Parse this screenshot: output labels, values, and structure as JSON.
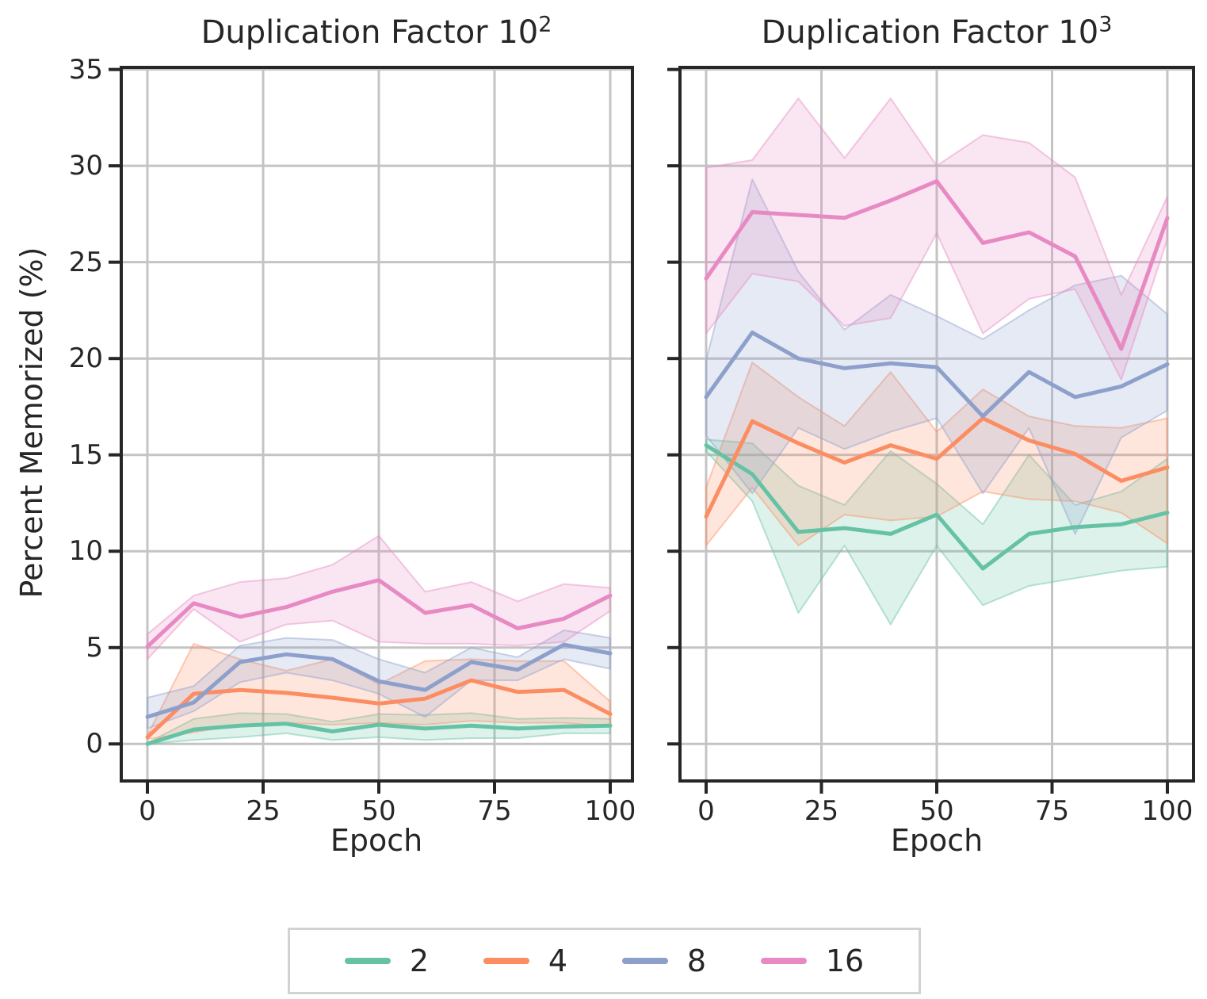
{
  "figure": {
    "background": "#ffffff",
    "text_color": "#262626",
    "grid_color": "#c4c4c4",
    "spine_color": "#262626"
  },
  "legend": {
    "labels": [
      "2",
      "4",
      "8",
      "16"
    ]
  },
  "chart_data": [
    {
      "type": "line",
      "title": "Duplication Factor 10²",
      "title_base": "Duplication Factor 10",
      "title_exponent": "2",
      "xlabel": "Epoch",
      "ylabel": "Percent Memorized (%)",
      "grid": true,
      "legend_position": "bottom-center",
      "x": [
        0,
        10,
        20,
        30,
        40,
        50,
        60,
        70,
        80,
        90,
        100
      ],
      "xticks": [
        0,
        25,
        50,
        75,
        100
      ],
      "yticks": [
        0,
        5,
        10,
        15,
        20,
        25,
        30,
        35
      ],
      "xlim": [
        -5.7,
        105.7
      ],
      "ylim": [
        -1.9,
        35.1
      ],
      "series": [
        {
          "name": "2",
          "color": "#66c2a5",
          "values": [
            0.0,
            0.75,
            0.95,
            1.05,
            0.65,
            1.0,
            0.8,
            0.95,
            0.8,
            0.9,
            0.95
          ],
          "band_lower": [
            0.0,
            0.2,
            0.35,
            0.55,
            0.2,
            0.35,
            0.2,
            0.3,
            0.3,
            0.55,
            0.55
          ],
          "band_upper": [
            0.05,
            1.3,
            1.6,
            1.55,
            1.15,
            1.55,
            1.5,
            1.6,
            1.3,
            1.35,
            1.3
          ]
        },
        {
          "name": "4",
          "color": "#fc8d62",
          "values": [
            0.35,
            2.6,
            2.8,
            2.65,
            2.4,
            2.1,
            2.35,
            3.3,
            2.7,
            2.8,
            1.55
          ],
          "band_lower": [
            0.25,
            0.6,
            1.0,
            1.1,
            1.0,
            1.1,
            1.0,
            1.2,
            1.1,
            1.1,
            0.9
          ],
          "band_upper": [
            0.45,
            5.2,
            4.4,
            3.8,
            4.4,
            3.1,
            4.3,
            4.4,
            4.3,
            4.3,
            2.2
          ]
        },
        {
          "name": "8",
          "color": "#8da0cb",
          "values": [
            1.4,
            2.15,
            4.25,
            4.65,
            4.4,
            3.25,
            2.8,
            4.25,
            3.85,
            5.15,
            4.7
          ],
          "band_lower": [
            0.8,
            1.7,
            3.2,
            3.7,
            3.3,
            2.6,
            1.4,
            3.3,
            3.3,
            4.4,
            3.9
          ],
          "band_upper": [
            2.4,
            3.0,
            5.1,
            5.5,
            5.4,
            4.4,
            3.7,
            5.0,
            4.5,
            5.9,
            5.5
          ]
        },
        {
          "name": "16",
          "color": "#e78ac3",
          "values": [
            5.05,
            7.3,
            6.6,
            7.1,
            7.9,
            8.5,
            6.8,
            7.2,
            6.0,
            6.5,
            7.7
          ],
          "band_lower": [
            4.4,
            7.0,
            5.3,
            6.2,
            6.4,
            5.3,
            5.2,
            5.2,
            5.1,
            5.3,
            6.9
          ],
          "band_upper": [
            5.7,
            7.7,
            8.4,
            8.6,
            9.3,
            10.8,
            7.9,
            8.4,
            7.4,
            8.3,
            8.1
          ]
        }
      ]
    },
    {
      "type": "line",
      "title": "Duplication Factor 10³",
      "title_base": "Duplication Factor 10",
      "title_exponent": "3",
      "xlabel": "Epoch",
      "ylabel": "Percent Memorized (%)",
      "grid": true,
      "legend_position": "bottom-center",
      "x": [
        0,
        10,
        20,
        30,
        40,
        50,
        60,
        70,
        80,
        90,
        100
      ],
      "xticks": [
        0,
        25,
        50,
        75,
        100
      ],
      "yticks": [
        0,
        5,
        10,
        15,
        20,
        25,
        30,
        35
      ],
      "xlim": [
        -5.7,
        105.7
      ],
      "ylim": [
        -1.9,
        35.1
      ],
      "series": [
        {
          "name": "2",
          "color": "#66c2a5",
          "values": [
            15.5,
            14.0,
            11.0,
            11.2,
            10.9,
            11.9,
            9.1,
            10.9,
            11.25,
            11.4,
            12.0
          ],
          "band_lower": [
            15.2,
            12.6,
            6.8,
            10.3,
            6.2,
            10.3,
            7.2,
            8.2,
            8.6,
            9.0,
            9.2
          ],
          "band_upper": [
            15.8,
            15.6,
            13.4,
            12.4,
            15.2,
            13.5,
            11.4,
            15.0,
            12.4,
            13.1,
            14.8
          ]
        },
        {
          "name": "4",
          "color": "#fc8d62",
          "values": [
            11.8,
            16.75,
            15.6,
            14.6,
            15.5,
            14.8,
            16.9,
            15.75,
            15.05,
            13.65,
            14.35
          ],
          "band_lower": [
            10.3,
            13.3,
            10.3,
            11.9,
            11.6,
            11.8,
            13.1,
            12.7,
            12.6,
            12.0,
            10.4
          ],
          "band_upper": [
            13.3,
            19.8,
            18.0,
            16.5,
            19.3,
            16.2,
            18.4,
            17.0,
            16.5,
            16.4,
            16.9
          ]
        },
        {
          "name": "8",
          "color": "#8da0cb",
          "values": [
            18.0,
            21.35,
            20.0,
            19.5,
            19.75,
            19.55,
            17.0,
            19.3,
            18.0,
            18.55,
            19.7
          ],
          "band_lower": [
            16.0,
            13.0,
            16.4,
            15.3,
            16.2,
            16.9,
            13.0,
            16.4,
            10.9,
            15.9,
            17.3
          ],
          "band_upper": [
            19.9,
            29.3,
            24.5,
            21.5,
            23.3,
            22.2,
            21.0,
            22.5,
            23.8,
            24.3,
            22.3
          ]
        },
        {
          "name": "16",
          "color": "#e78ac3",
          "values": [
            24.15,
            27.6,
            27.45,
            27.3,
            28.2,
            29.2,
            26.0,
            26.55,
            25.3,
            20.5,
            27.3
          ],
          "band_lower": [
            21.3,
            24.4,
            24.0,
            21.7,
            22.1,
            26.5,
            21.3,
            23.1,
            23.6,
            18.9,
            26.2
          ],
          "band_upper": [
            29.9,
            30.3,
            33.5,
            30.4,
            33.5,
            30.0,
            31.6,
            31.2,
            29.4,
            23.3,
            28.4
          ]
        }
      ]
    }
  ]
}
